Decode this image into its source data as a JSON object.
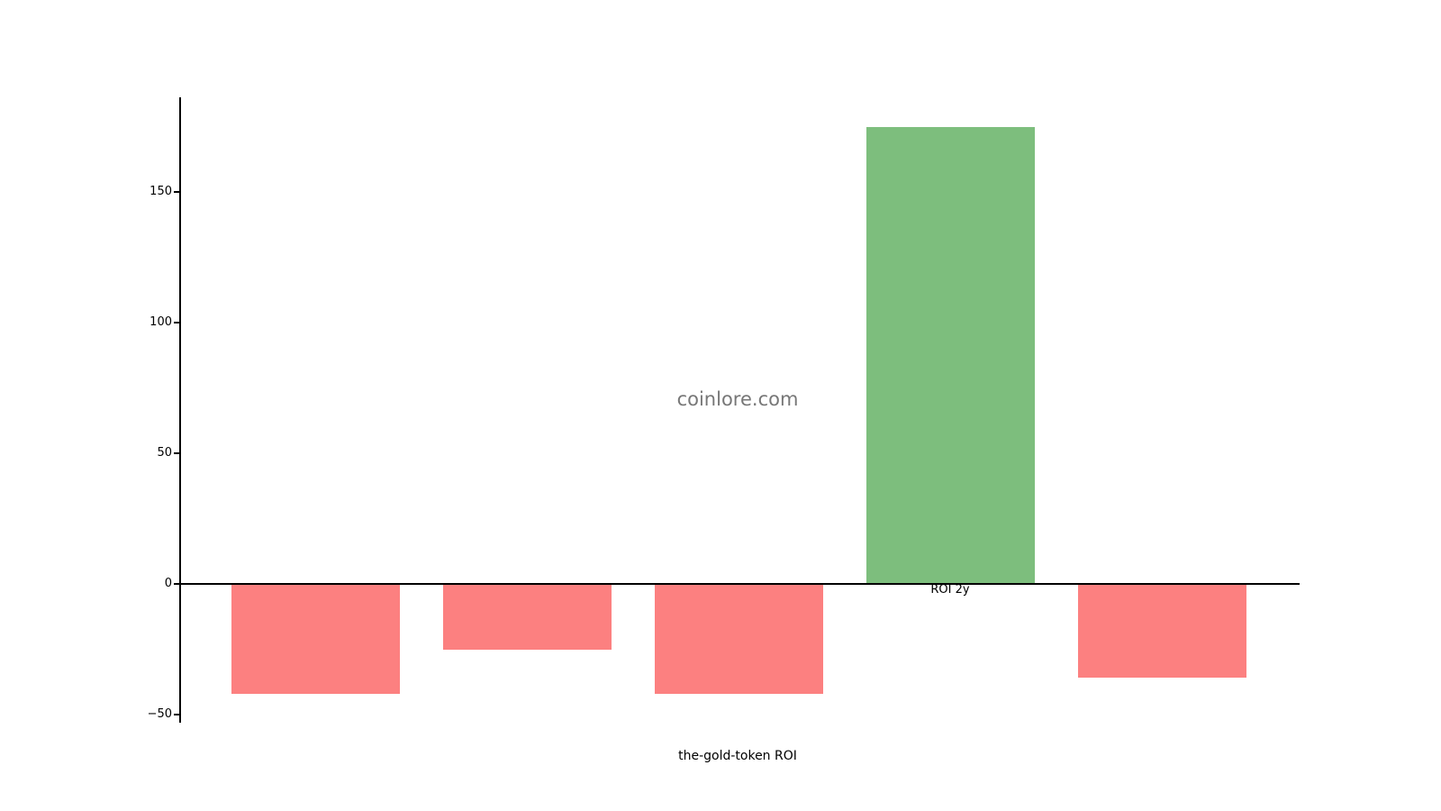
{
  "chart_data": {
    "type": "bar",
    "title": "",
    "xlabel": "the-gold-token ROI",
    "ylabel": "",
    "watermark": "coinlore.com",
    "categories": [
      "",
      "",
      "",
      "ROI 2y",
      ""
    ],
    "values": [
      -42,
      -25,
      -42,
      175,
      -36
    ],
    "yticks": [
      150,
      100,
      50,
      0,
      -50
    ],
    "ylim": [
      -53,
      186
    ],
    "grid": false,
    "legend": "none",
    "colors": {
      "positive": "#7dbe7d",
      "negative": "#fc8080",
      "axis": "#000000",
      "tick_label": "#000000",
      "watermark": "#777777",
      "background": "#ffffff"
    }
  }
}
